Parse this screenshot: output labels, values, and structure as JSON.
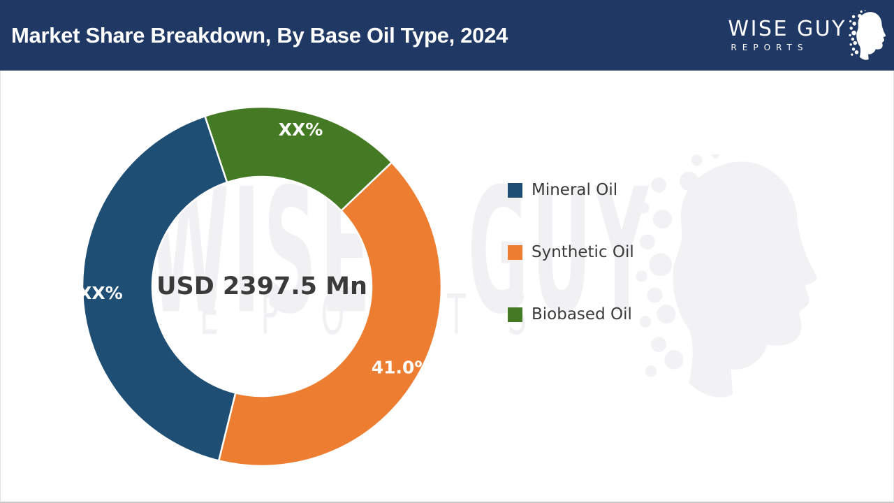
{
  "header": {
    "title": "Market Share Breakdown, By Base Oil Type, 2024",
    "logo_primary": "WISE GUY",
    "logo_secondary": "REPORTS"
  },
  "watermark": {
    "primary": "WISE GUY",
    "secondary": "REPORTS"
  },
  "chart_data": {
    "type": "pie",
    "subtype": "donut",
    "title": "Market Share Breakdown, By Base Oil Type, 2024",
    "center_label": "USD 2397.5 Mn",
    "hole_ratio": 0.61,
    "legend_position": "right",
    "label_radius_ratio": 0.9,
    "slices": [
      {
        "name": "Mineral Oil",
        "label": "XX%",
        "value": null,
        "color": "#1f4e74",
        "start_deg": 193.9,
        "end_deg": 341.5
      },
      {
        "name": "Synthetic Oil",
        "label": "41.0%",
        "value": 41.0,
        "color": "#ed7d31",
        "start_deg": 46.3,
        "end_deg": 193.9
      },
      {
        "name": "Biobased Oil",
        "label": "XX%",
        "value": null,
        "color": "#447a23",
        "start_deg": -18.5,
        "end_deg": 46.3
      }
    ]
  },
  "colors": {
    "header_bg": "#1f3864",
    "header_text": "#ffffff",
    "mineral_oil": "#1f4e74",
    "synthetic_oil": "#ed7d31",
    "biobased_oil": "#447a23",
    "center_text": "#3a3a3a",
    "legend_text": "#3a3a3a",
    "slice_label_text": "#ffffff",
    "watermark": "#f1f1f4",
    "bottom_rule": "#c8c8c8"
  }
}
